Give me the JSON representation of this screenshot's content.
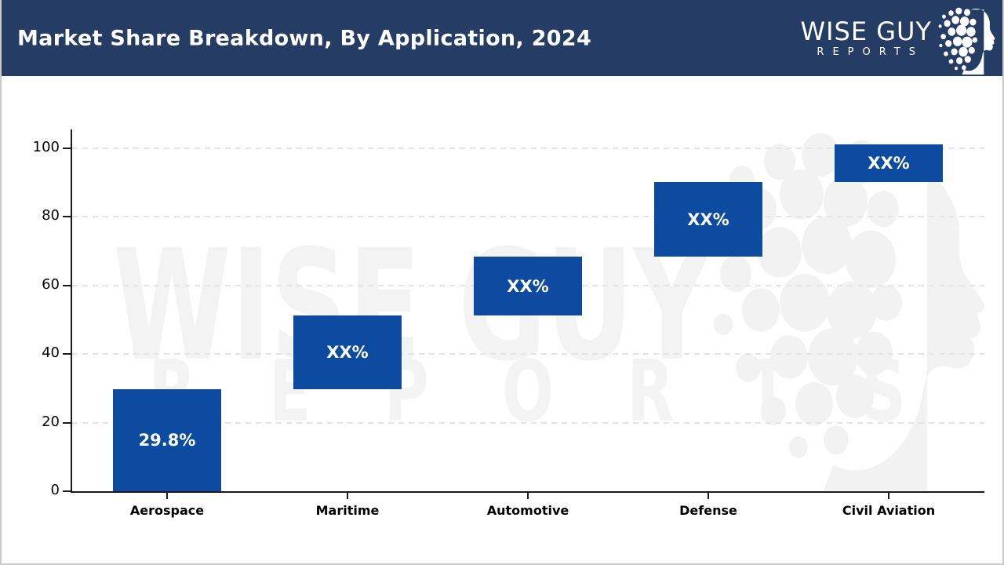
{
  "header": {
    "title": "Market Share Breakdown, By Application, 2024",
    "logo": {
      "line1": "WISE GUY",
      "line2": "REPORTS"
    }
  },
  "watermark": {
    "line1": "WISE GUY",
    "line2": "REPORTS"
  },
  "colors": {
    "header_bg": "#253C64",
    "bar": "#0D4BA0",
    "grid": "#e4e4e4",
    "axis": "#1a1a1a",
    "bar_label": "#ffffff",
    "watermark": "#f3f3f3",
    "page_border": "#c9c9c9"
  },
  "chart_data": {
    "type": "bar",
    "subtype": "waterfall",
    "title": "Market Share Breakdown, By Application, 2024",
    "categories": [
      "Aerospace",
      "Maritime",
      "Automotive",
      "Defense",
      "Civil Aviation"
    ],
    "segments": [
      {
        "category": "Aerospace",
        "start": 0,
        "end": 29.8,
        "label": "29.8%"
      },
      {
        "category": "Maritime",
        "start": 29.8,
        "end": 51.2,
        "label": "XX%"
      },
      {
        "category": "Automotive",
        "start": 51.2,
        "end": 68.3,
        "label": "XX%"
      },
      {
        "category": "Defense",
        "start": 68.3,
        "end": 90.1,
        "label": "XX%"
      },
      {
        "category": "Civil Aviation",
        "start": 90.1,
        "end": 101.0,
        "label": "XX%"
      }
    ],
    "y_ticks": [
      0,
      20,
      40,
      60,
      80,
      100
    ],
    "y_tick_labels": [
      "0",
      "20",
      "40",
      "60",
      "80",
      "100"
    ],
    "ylim": [
      0,
      105
    ],
    "xlabel": "",
    "ylabel": "",
    "grid": "horizontal-dashed",
    "legend": "none",
    "bar_color": "#0D4BA0"
  }
}
